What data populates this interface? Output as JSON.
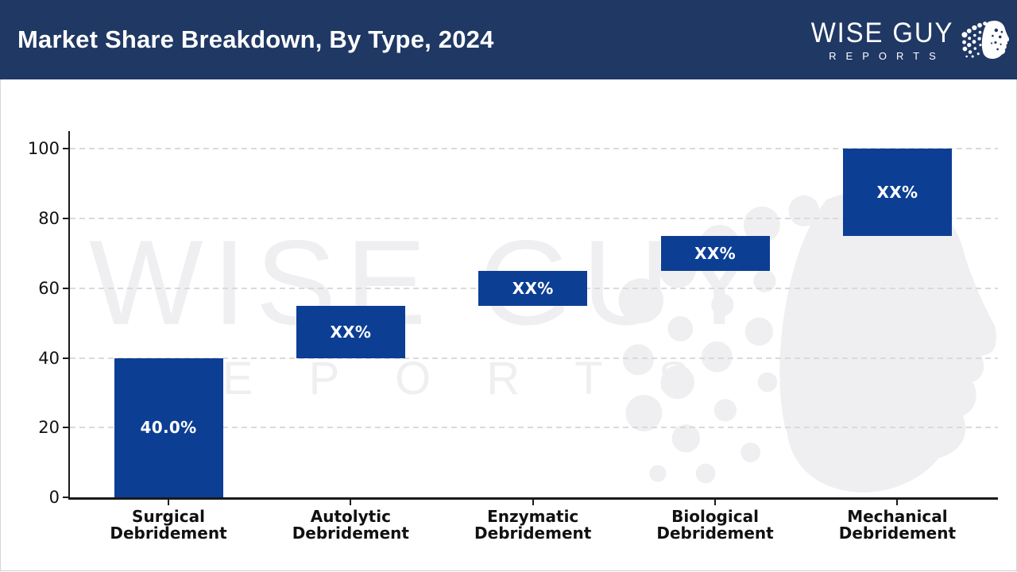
{
  "header": {
    "title": "Market Share Breakdown, By Type, 2024",
    "logo": {
      "line1": "WISE GUY",
      "line2": "REPORTS"
    }
  },
  "watermark": {
    "line1": "WISE GUY",
    "line2": "REPORTS"
  },
  "colors": {
    "header_bg": "#1F3864",
    "bar": "#0C3E94",
    "grid": "#DADADA",
    "axis": "#1A1A1A",
    "watermark": "#EFEFF2",
    "bar_label_text": "#FFFFFF",
    "title_text": "#FFFFFF"
  },
  "chart_data": {
    "type": "bar",
    "subtype": "waterfall",
    "title": "Market Share Breakdown, By Type, 2024",
    "categories": [
      "Surgical Debridement",
      "Autolytic Debridement",
      "Enzymatic Debridement",
      "Biological Debridement",
      "Mechanical Debridement"
    ],
    "values": [
      40,
      15,
      10,
      10,
      25
    ],
    "cumulative_start": [
      0,
      40,
      55,
      65,
      75
    ],
    "cumulative_end": [
      40,
      55,
      65,
      75,
      100
    ],
    "bar_labels": [
      "40.0%",
      "XX%",
      "XX%",
      "XX%",
      "XX%"
    ],
    "xlabel": "",
    "ylabel": "",
    "ylim": [
      0,
      100
    ],
    "yticks": [
      0,
      20,
      40,
      60,
      80,
      100
    ],
    "grid": "horizontal-dashed",
    "legend": "none",
    "bar_color": "#0C3E94"
  }
}
